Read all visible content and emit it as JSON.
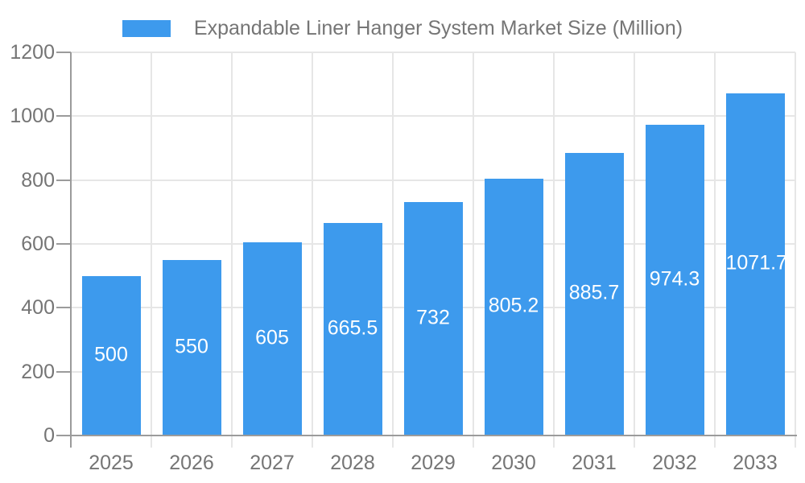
{
  "legend": {
    "label": "Expandable Liner Hanger System Market Size (Million)"
  },
  "chart_data": {
    "type": "bar",
    "title": "Expandable Liner Hanger System Market Size (Million)",
    "categories": [
      "2025",
      "2026",
      "2027",
      "2028",
      "2029",
      "2030",
      "2031",
      "2032",
      "2033"
    ],
    "values": [
      500,
      550,
      605,
      665.5,
      732,
      805.2,
      885.7,
      974.3,
      1071.7
    ],
    "value_labels": [
      "500",
      "550",
      "605",
      "665.5",
      "732",
      "805.2",
      "885.7",
      "974.3",
      "1071.7"
    ],
    "xlabel": "",
    "ylabel": "",
    "ylim": [
      0,
      1200
    ],
    "yticks": [
      0,
      200,
      400,
      600,
      800,
      1000,
      1200
    ],
    "grid": true,
    "legend_position": "top",
    "colors": {
      "bar": "#3D9AED",
      "grid_line": "#E6E6E6",
      "axis_line": "#9B9B9B",
      "axis_label_text": "#757575",
      "value_label_text": "#FFFFFF",
      "background": "#FFFFFF"
    }
  }
}
